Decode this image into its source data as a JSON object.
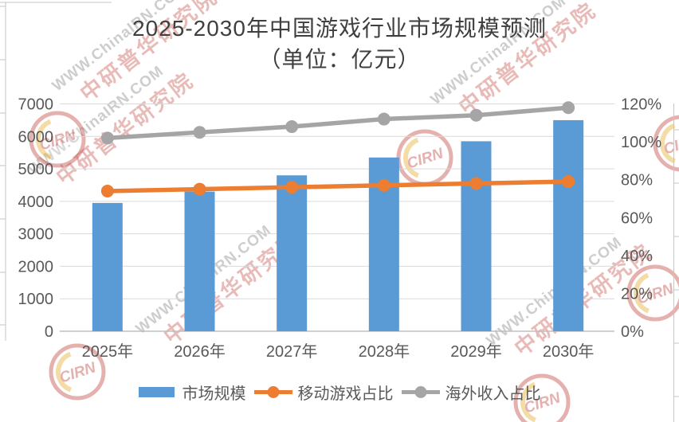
{
  "title": {
    "line1": "2025-2030年中国游戏行业市场规模预测",
    "line2": "（单位：亿元）"
  },
  "chart_data": {
    "type": "combo-bar-line",
    "title": "2025-2030年中国游戏行业市场规模预测（单位：亿元）",
    "categories": [
      "2025年",
      "2026年",
      "2027年",
      "2028年",
      "2029年",
      "2030年"
    ],
    "series": [
      {
        "name": "市场规模",
        "chart_type": "bar",
        "axis": "left",
        "unit": "亿元",
        "color": "#5B9BD5",
        "values": [
          3950,
          4300,
          4800,
          5350,
          5850,
          6500
        ]
      },
      {
        "name": "移动游戏占比",
        "chart_type": "line",
        "axis": "right",
        "unit": "%",
        "color": "#ED7D31",
        "values": [
          74,
          75,
          76,
          77,
          78,
          79
        ]
      },
      {
        "name": "海外收入占比",
        "chart_type": "line",
        "axis": "right",
        "unit": "%",
        "color": "#A5A5A5",
        "values": [
          102,
          105,
          108,
          112,
          114,
          118
        ]
      }
    ],
    "left_axis": {
      "min": 0,
      "max": 7000,
      "tick_step": 1000,
      "tick_labels": [
        "0",
        "1000",
        "2000",
        "3000",
        "4000",
        "5000",
        "6000",
        "7000"
      ]
    },
    "right_axis": {
      "min_pct": 0,
      "max_pct": 120,
      "tick_step_pct": 20,
      "tick_labels": [
        "0%",
        "20%",
        "40%",
        "60%",
        "80%",
        "100%",
        "120%"
      ]
    },
    "grid": true,
    "legend_position": "bottom"
  },
  "watermark": {
    "url_text": "WWW.ChinaIRN.COM",
    "brand_text": "中研普华研究院",
    "logo_text": "CIRN"
  },
  "colors": {
    "bar_blue": "#5B9BD5",
    "line_orange": "#ED7D31",
    "line_gray": "#A5A5A5",
    "axis_text": "#595959",
    "gridline": "#D9D9D9",
    "axis_line": "#BFBFBF",
    "title_text": "#3F3F3F",
    "watermark_red": "#C6544E",
    "watermark_yellow": "#E8B33C"
  }
}
